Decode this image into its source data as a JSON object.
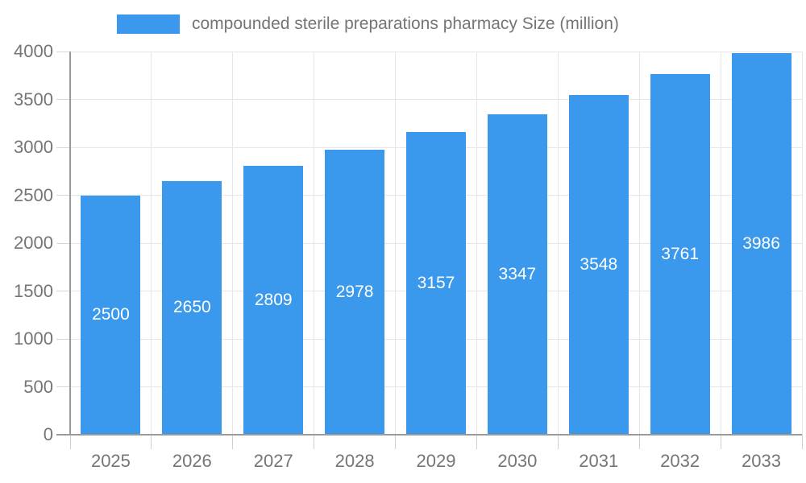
{
  "colors": {
    "bar": "#3a99ec",
    "gridline": "#e6e6e6",
    "axis": "#9a9a9a",
    "tick": "#cfcfcf",
    "axis_text": "#757575",
    "value_text": "#ffffff",
    "background": "#ffffff"
  },
  "chart_data": {
    "type": "bar",
    "title": "",
    "legend": "compounded sterile preparations pharmacy Size (million)",
    "legend_position": "top",
    "categories": [
      "2025",
      "2026",
      "2027",
      "2028",
      "2029",
      "2030",
      "2031",
      "2032",
      "2033"
    ],
    "values": [
      2500,
      2650,
      2809,
      2978,
      3157,
      3347,
      3548,
      3761,
      3986
    ],
    "xlabel": "",
    "ylabel": "",
    "ylim": [
      0,
      4000
    ],
    "ytick_interval": 500,
    "ytick_labels": [
      "0",
      "500",
      "1000",
      "1500",
      "2000",
      "2500",
      "3000",
      "3500",
      "4000"
    ],
    "grid": true,
    "value_labels_shown": true,
    "value_label_position": "center-of-bar"
  }
}
